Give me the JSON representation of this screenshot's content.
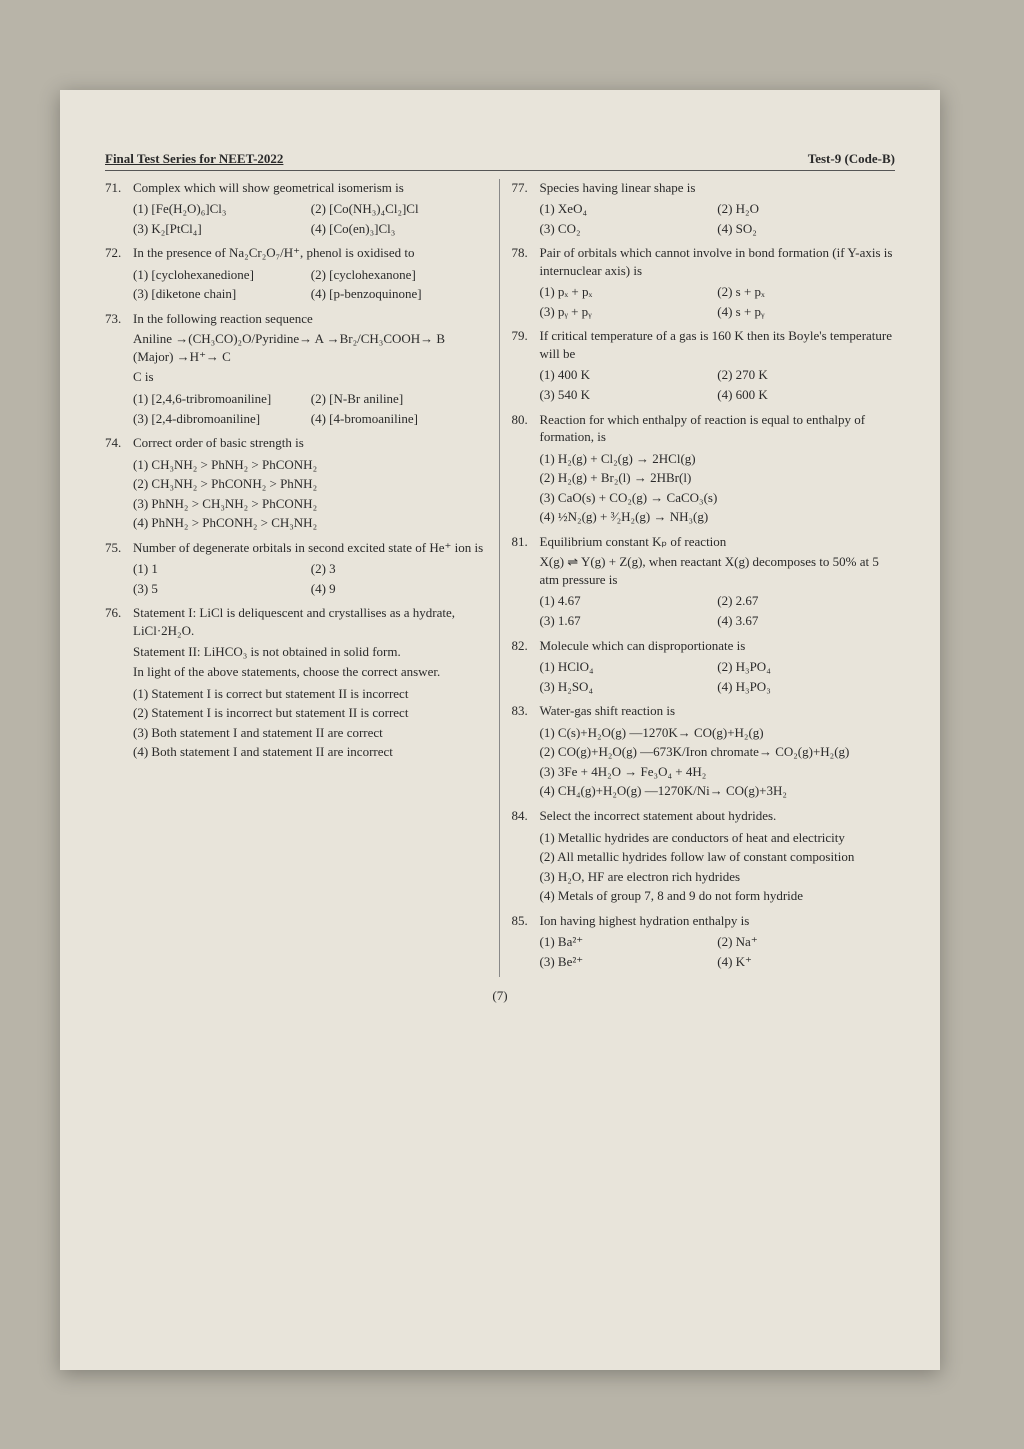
{
  "header": {
    "left": "Final Test Series for NEET-2022",
    "right": "Test-9 (Code-B)"
  },
  "footer": "(7)",
  "left_questions": [
    {
      "num": "71.",
      "text": "Complex which will show geometrical isomerism is",
      "opts": [
        {
          "n": "(1)",
          "t": "[Fe(H₂O)₆]Cl₃"
        },
        {
          "n": "(2)",
          "t": "[Co(NH₃)₄Cl₂]Cl"
        },
        {
          "n": "(3)",
          "t": "K₂[PtCl₄]"
        },
        {
          "n": "(4)",
          "t": "[Co(en)₃]Cl₃"
        }
      ]
    },
    {
      "num": "72.",
      "text": "In the presence of Na₂Cr₂O₇/H⁺, phenol is oxidised to",
      "opts": [
        {
          "n": "(1)",
          "t": "[cyclohexanedione]"
        },
        {
          "n": "(2)",
          "t": "[cyclohexanone]"
        },
        {
          "n": "(3)",
          "t": "[diketone chain]"
        },
        {
          "n": "(4)",
          "t": "[p-benzoquinone]"
        }
      ]
    },
    {
      "num": "73.",
      "text": "In the following reaction sequence",
      "sub": "Aniline →(CH₃CO)₂O/Pyridine→ A →Br₂/CH₃COOH→ B (Major) →H⁺→ C",
      "sub2": "C is",
      "opts": [
        {
          "n": "(1)",
          "t": "[2,4,6-tribromoaniline]"
        },
        {
          "n": "(2)",
          "t": "[N-Br aniline]"
        },
        {
          "n": "(3)",
          "t": "[2,4-dibromoaniline]"
        },
        {
          "n": "(4)",
          "t": "[4-bromoaniline]"
        }
      ]
    },
    {
      "num": "74.",
      "text": "Correct order of basic strength is",
      "optlist": [
        {
          "n": "(1)",
          "t": "CH₃NH₂ > PhNH₂ > PhCONH₂"
        },
        {
          "n": "(2)",
          "t": "CH₃NH₂ > PhCONH₂ > PhNH₂"
        },
        {
          "n": "(3)",
          "t": "PhNH₂ > CH₃NH₂ > PhCONH₂"
        },
        {
          "n": "(4)",
          "t": "PhNH₂ > PhCONH₂ > CH₃NH₂"
        }
      ]
    },
    {
      "num": "75.",
      "text": "Number of degenerate orbitals in second excited state of He⁺ ion is",
      "opts": [
        {
          "n": "(1)",
          "t": "1"
        },
        {
          "n": "(2)",
          "t": "3"
        },
        {
          "n": "(3)",
          "t": "5"
        },
        {
          "n": "(4)",
          "t": "9"
        }
      ]
    },
    {
      "num": "76.",
      "text": "Statement I: LiCl is deliquescent and crystallises as a hydrate, LiCl·2H₂O.",
      "sub": "Statement II: LiHCO₃ is not obtained in solid form.",
      "sub2": "In light of the above statements, choose the correct answer.",
      "optlist": [
        {
          "n": "(1)",
          "t": "Statement I is correct but statement II is incorrect"
        },
        {
          "n": "(2)",
          "t": "Statement I is incorrect but statement II is correct"
        },
        {
          "n": "(3)",
          "t": "Both statement I and statement II are correct"
        },
        {
          "n": "(4)",
          "t": "Both statement I and statement II are incorrect"
        }
      ]
    }
  ],
  "right_questions": [
    {
      "num": "77.",
      "text": "Species having linear shape is",
      "opts": [
        {
          "n": "(1)",
          "t": "XeO₄"
        },
        {
          "n": "(2)",
          "t": "H₂O"
        },
        {
          "n": "(3)",
          "t": "CO₂"
        },
        {
          "n": "(4)",
          "t": "SO₂"
        }
      ]
    },
    {
      "num": "78.",
      "text": "Pair of orbitals which cannot involve in bond formation (if Y-axis is internuclear axis) is",
      "opts": [
        {
          "n": "(1)",
          "t": "pₓ + pₓ"
        },
        {
          "n": "(2)",
          "t": "s + pₓ"
        },
        {
          "n": "(3)",
          "t": "pᵧ + pᵧ"
        },
        {
          "n": "(4)",
          "t": "s + pᵧ"
        }
      ]
    },
    {
      "num": "79.",
      "text": "If critical temperature of a gas is 160 K then its Boyle's temperature will be",
      "opts": [
        {
          "n": "(1)",
          "t": "400 K"
        },
        {
          "n": "(2)",
          "t": "270 K"
        },
        {
          "n": "(3)",
          "t": "540 K"
        },
        {
          "n": "(4)",
          "t": "600 K"
        }
      ]
    },
    {
      "num": "80.",
      "text": "Reaction for which enthalpy of reaction is equal to enthalpy of formation, is",
      "optlist": [
        {
          "n": "(1)",
          "t": "H₂(g) + Cl₂(g) → 2HCl(g)"
        },
        {
          "n": "(2)",
          "t": "H₂(g) + Br₂(l) → 2HBr(l)"
        },
        {
          "n": "(3)",
          "t": "CaO(s) + CO₂(g) → CaCO₃(s)"
        },
        {
          "n": "(4)",
          "t": "½N₂(g) + ³⁄₂H₂(g) → NH₃(g)"
        }
      ]
    },
    {
      "num": "81.",
      "text": "Equilibrium constant Kₚ of reaction",
      "sub": "X(g) ⇌ Y(g) + Z(g), when reactant X(g) decomposes to 50% at 5 atm pressure is",
      "opts": [
        {
          "n": "(1)",
          "t": "4.67"
        },
        {
          "n": "(2)",
          "t": "2.67"
        },
        {
          "n": "(3)",
          "t": "1.67"
        },
        {
          "n": "(4)",
          "t": "3.67"
        }
      ]
    },
    {
      "num": "82.",
      "text": "Molecule which can disproportionate is",
      "opts": [
        {
          "n": "(1)",
          "t": "HClO₄"
        },
        {
          "n": "(2)",
          "t": "H₃PO₄"
        },
        {
          "n": "(3)",
          "t": "H₂SO₄"
        },
        {
          "n": "(4)",
          "t": "H₃PO₃"
        }
      ]
    },
    {
      "num": "83.",
      "text": "Water-gas shift reaction is",
      "optlist": [
        {
          "n": "(1)",
          "t": "C(s)+H₂O(g) —1270K→ CO(g)+H₂(g)"
        },
        {
          "n": "(2)",
          "t": "CO(g)+H₂O(g) —673K/Iron chromate→ CO₂(g)+H₂(g)"
        },
        {
          "n": "(3)",
          "t": "3Fe + 4H₂O → Fe₃O₄ + 4H₂"
        },
        {
          "n": "(4)",
          "t": "CH₄(g)+H₂O(g) —1270K/Ni→ CO(g)+3H₂"
        }
      ]
    },
    {
      "num": "84.",
      "text": "Select the incorrect statement about hydrides.",
      "optlist": [
        {
          "n": "(1)",
          "t": "Metallic hydrides are conductors of heat and electricity"
        },
        {
          "n": "(2)",
          "t": "All metallic hydrides follow law of constant composition"
        },
        {
          "n": "(3)",
          "t": "H₂O, HF are electron rich hydrides"
        },
        {
          "n": "(4)",
          "t": "Metals of group 7, 8 and 9 do not form hydride"
        }
      ]
    },
    {
      "num": "85.",
      "text": "Ion having highest hydration enthalpy is",
      "opts": [
        {
          "n": "(1)",
          "t": "Ba²⁺"
        },
        {
          "n": "(2)",
          "t": "Na⁺"
        },
        {
          "n": "(3)",
          "t": "Be²⁺"
        },
        {
          "n": "(4)",
          "t": "K⁺"
        }
      ]
    }
  ]
}
